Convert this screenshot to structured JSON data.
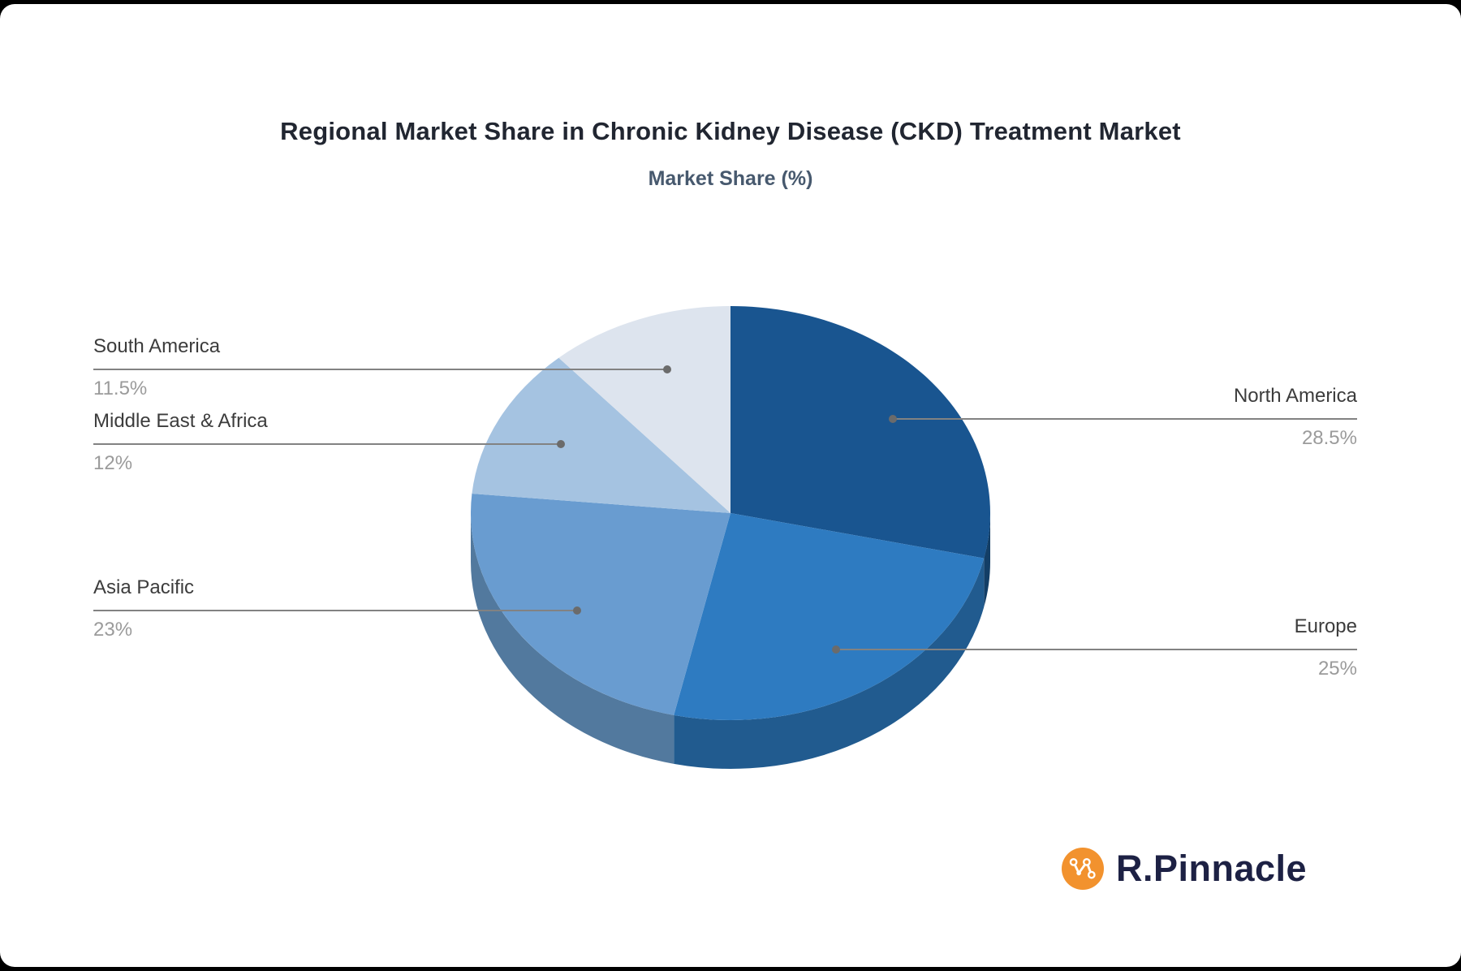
{
  "page": {
    "background": "#ffffff",
    "frame_color": "#000000"
  },
  "chart_data": {
    "type": "pie",
    "title": "Regional Market Share in Chronic Kidney Disease (CKD) Treatment Market",
    "subtitle": "Market Share (%)",
    "unit": "%",
    "direction": "clockwise",
    "start_angle_deg": 0,
    "effect": "3d",
    "legend_position": "callout-labels",
    "slices": [
      {
        "label": "North America",
        "value": 28.5,
        "display_value": "28.5%",
        "color": "#195590",
        "side_color": "#133e66"
      },
      {
        "label": "Europe",
        "value": 25,
        "display_value": "25%",
        "color": "#2e7bc1",
        "side_color": "#215b8f"
      },
      {
        "label": "Asia Pacific",
        "value": 23,
        "display_value": "23%",
        "color": "#699cd0",
        "side_color": "#52799e"
      },
      {
        "label": "Middle East & Africa",
        "value": 12,
        "display_value": "12%",
        "color": "#a5c3e1",
        "side_color": "#7e97ad"
      },
      {
        "label": "South America",
        "value": 11.5,
        "display_value": "11.5%",
        "color": "#dde4ee",
        "side_color": "#a9b2bf"
      }
    ]
  },
  "branding": {
    "logo_text": "R.Pinnacle",
    "logo_text_color": "#1d2144",
    "icon_color": "#f2922e",
    "icon_glyph_color": "#ffffff"
  }
}
